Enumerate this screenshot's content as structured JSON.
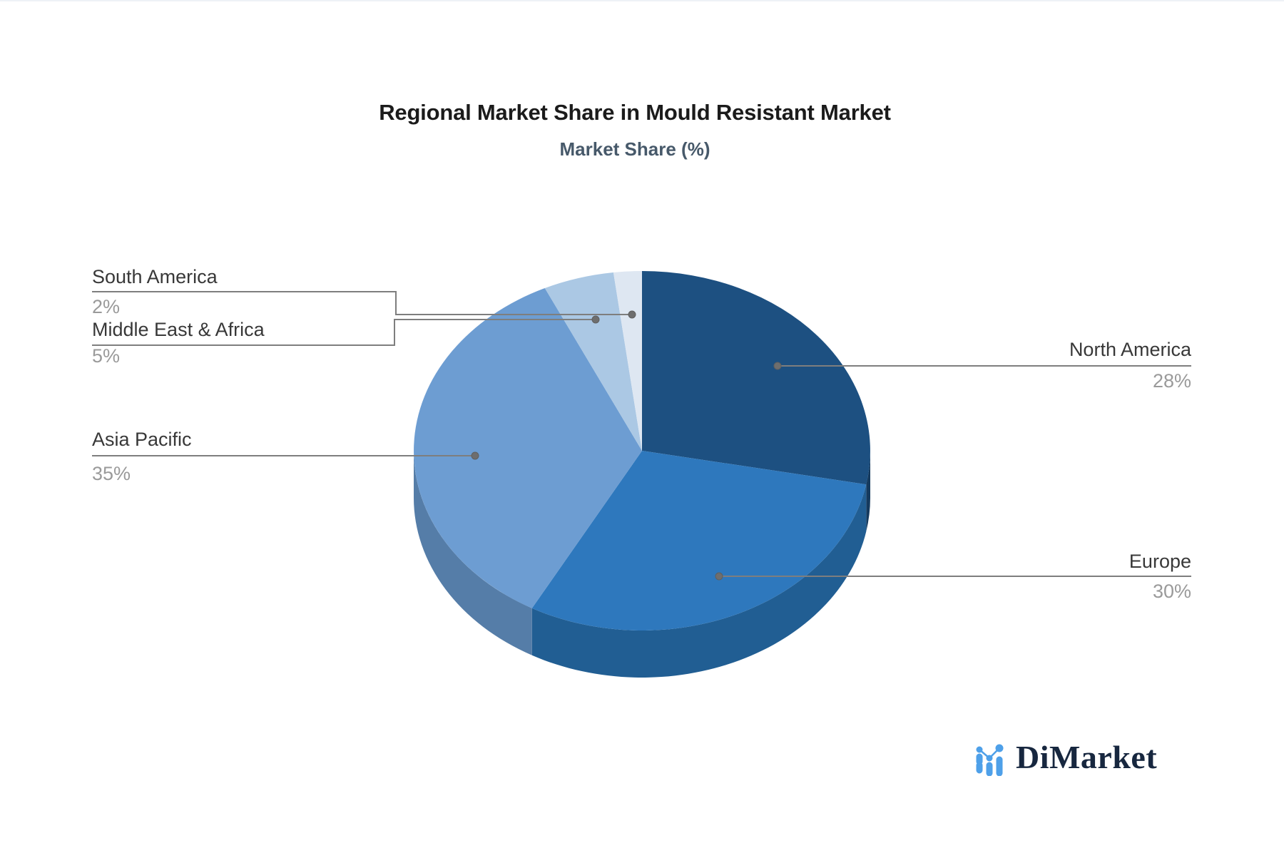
{
  "header": {
    "title": "Regional Market Share in Mould Resistant Market",
    "subtitle": "Market Share (%)"
  },
  "chart_data": {
    "type": "pie",
    "effect": "3d",
    "title": "Regional Market Share in Mould Resistant Market",
    "subtitle": "Market Share (%)",
    "unit": "%",
    "start_angle_deg": 0,
    "direction": "clockwise",
    "labels": [
      "North America",
      "Europe",
      "Asia Pacific",
      "Middle East & Africa",
      "South America"
    ],
    "values": [
      28,
      30,
      35,
      5,
      2
    ],
    "colors": [
      "#1D5081",
      "#2E78BD",
      "#6D9DD2",
      "#ABC8E4",
      "#DEE7F2"
    ],
    "side_colors": [
      "#153A5E",
      "#215E93",
      "#557DA8",
      "#8BA6BF",
      "#AEB9C9"
    ],
    "legend": "callout-labels"
  },
  "callouts": [
    {
      "label": "South America",
      "value": "2%"
    },
    {
      "label": "Middle East & Africa",
      "value": "5%"
    },
    {
      "label": "Asia Pacific",
      "value": "35%"
    },
    {
      "label": "North America",
      "value": "28%"
    },
    {
      "label": "Europe",
      "value": "30%"
    }
  ],
  "branding": {
    "logo_text": "DiMarket"
  }
}
